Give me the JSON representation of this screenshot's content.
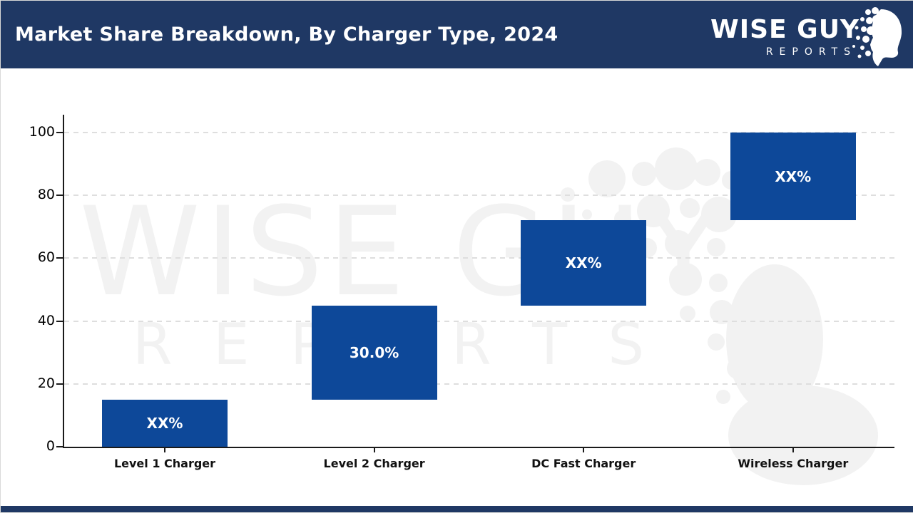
{
  "header": {
    "title": "Market Share Breakdown, By Charger Type, 2024",
    "background": "#1f3864",
    "logo": {
      "line1": "WISE GUY",
      "line2": "REPORTS",
      "icon": "dotted-head-profile-icon"
    }
  },
  "watermark": {
    "line1": "WISE GUY",
    "line2": "R E P O R T S",
    "icon": "dotted-head-profile-watermark"
  },
  "chart_data": {
    "type": "bar",
    "subtype": "waterfall",
    "title": "Market Share Breakdown, By Charger Type, 2024",
    "categories": [
      "Level 1 Charger",
      "Level 2 Charger",
      "DC Fast Charger",
      "Wireless Charger"
    ],
    "segments": [
      {
        "category": "Level 1 Charger",
        "start": 0,
        "end": 15,
        "value": 15,
        "label": "XX%"
      },
      {
        "category": "Level 2 Charger",
        "start": 15,
        "end": 45,
        "value": 30,
        "label": "30.0%"
      },
      {
        "category": "DC Fast Charger",
        "start": 45,
        "end": 72,
        "value": 27,
        "label": "XX%"
      },
      {
        "category": "Wireless Charger",
        "start": 72,
        "end": 100,
        "value": 28,
        "label": "XX%"
      }
    ],
    "yticks": [
      0,
      20,
      40,
      60,
      80,
      100
    ],
    "ylim": [
      0,
      100
    ],
    "xlabel": "",
    "ylabel": "",
    "bar_color": "#0d4899",
    "grid": "horizontal-dashed",
    "gridline_color": "#dedede",
    "axis_color": "#1a1a1a",
    "legend": "none"
  },
  "footer": {
    "background": "#1f3864"
  }
}
